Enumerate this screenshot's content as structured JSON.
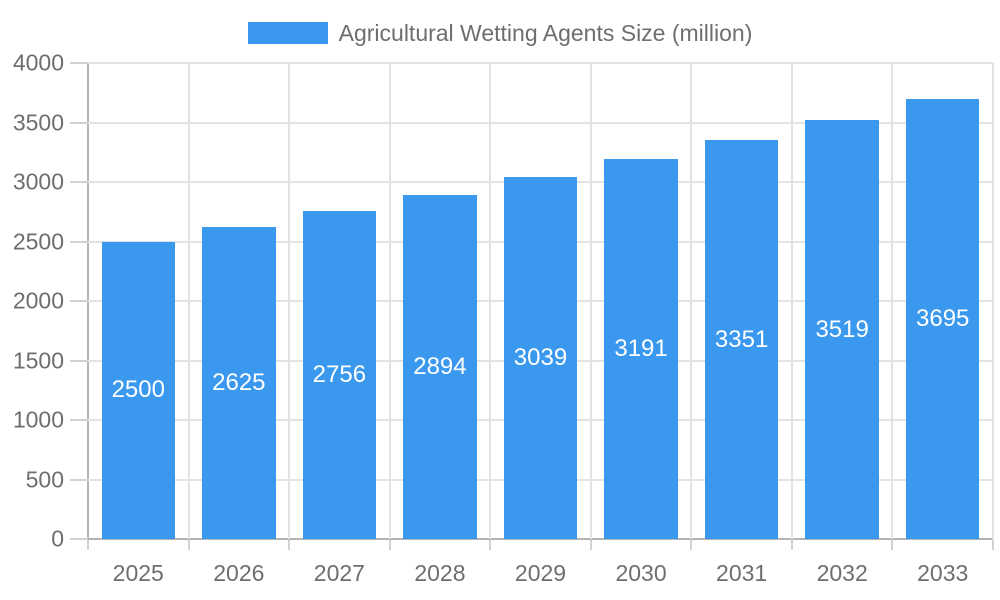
{
  "chart_data": {
    "type": "bar",
    "legend_label": "Agricultural Wetting Agents Size (million)",
    "legend_position": "top-center",
    "categories": [
      "2025",
      "2026",
      "2027",
      "2028",
      "2029",
      "2030",
      "2031",
      "2032",
      "2033"
    ],
    "series": [
      {
        "name": "Agricultural Wetting Agents Size (million)",
        "values": [
          2500,
          2625,
          2756,
          2894,
          3039,
          3191,
          3351,
          3519,
          3695
        ]
      }
    ],
    "bar_value_labels": [
      "2500",
      "2625",
      "2756",
      "2894",
      "3039",
      "3191",
      "3351",
      "3519",
      "3695"
    ],
    "xlabel": "",
    "ylabel": "",
    "ylim": [
      0,
      4000
    ],
    "y_ticks": [
      0,
      500,
      1000,
      1500,
      2000,
      2500,
      3000,
      3500,
      4000
    ],
    "y_tick_labels": [
      "0",
      "500",
      "1000",
      "1500",
      "2000",
      "2500",
      "3000",
      "3500",
      "4000"
    ],
    "grid": "on",
    "colors": {
      "bar": "#3a99ee",
      "bar_value_text": "#ffffff",
      "gridline": "#e3e3e3",
      "axis_line": "#b3b3b3",
      "tick_mark": "#d2d2d2",
      "axis_text": "#6e6e6e",
      "legend_text": "#6e6e6e",
      "background": "#ffffff"
    }
  }
}
